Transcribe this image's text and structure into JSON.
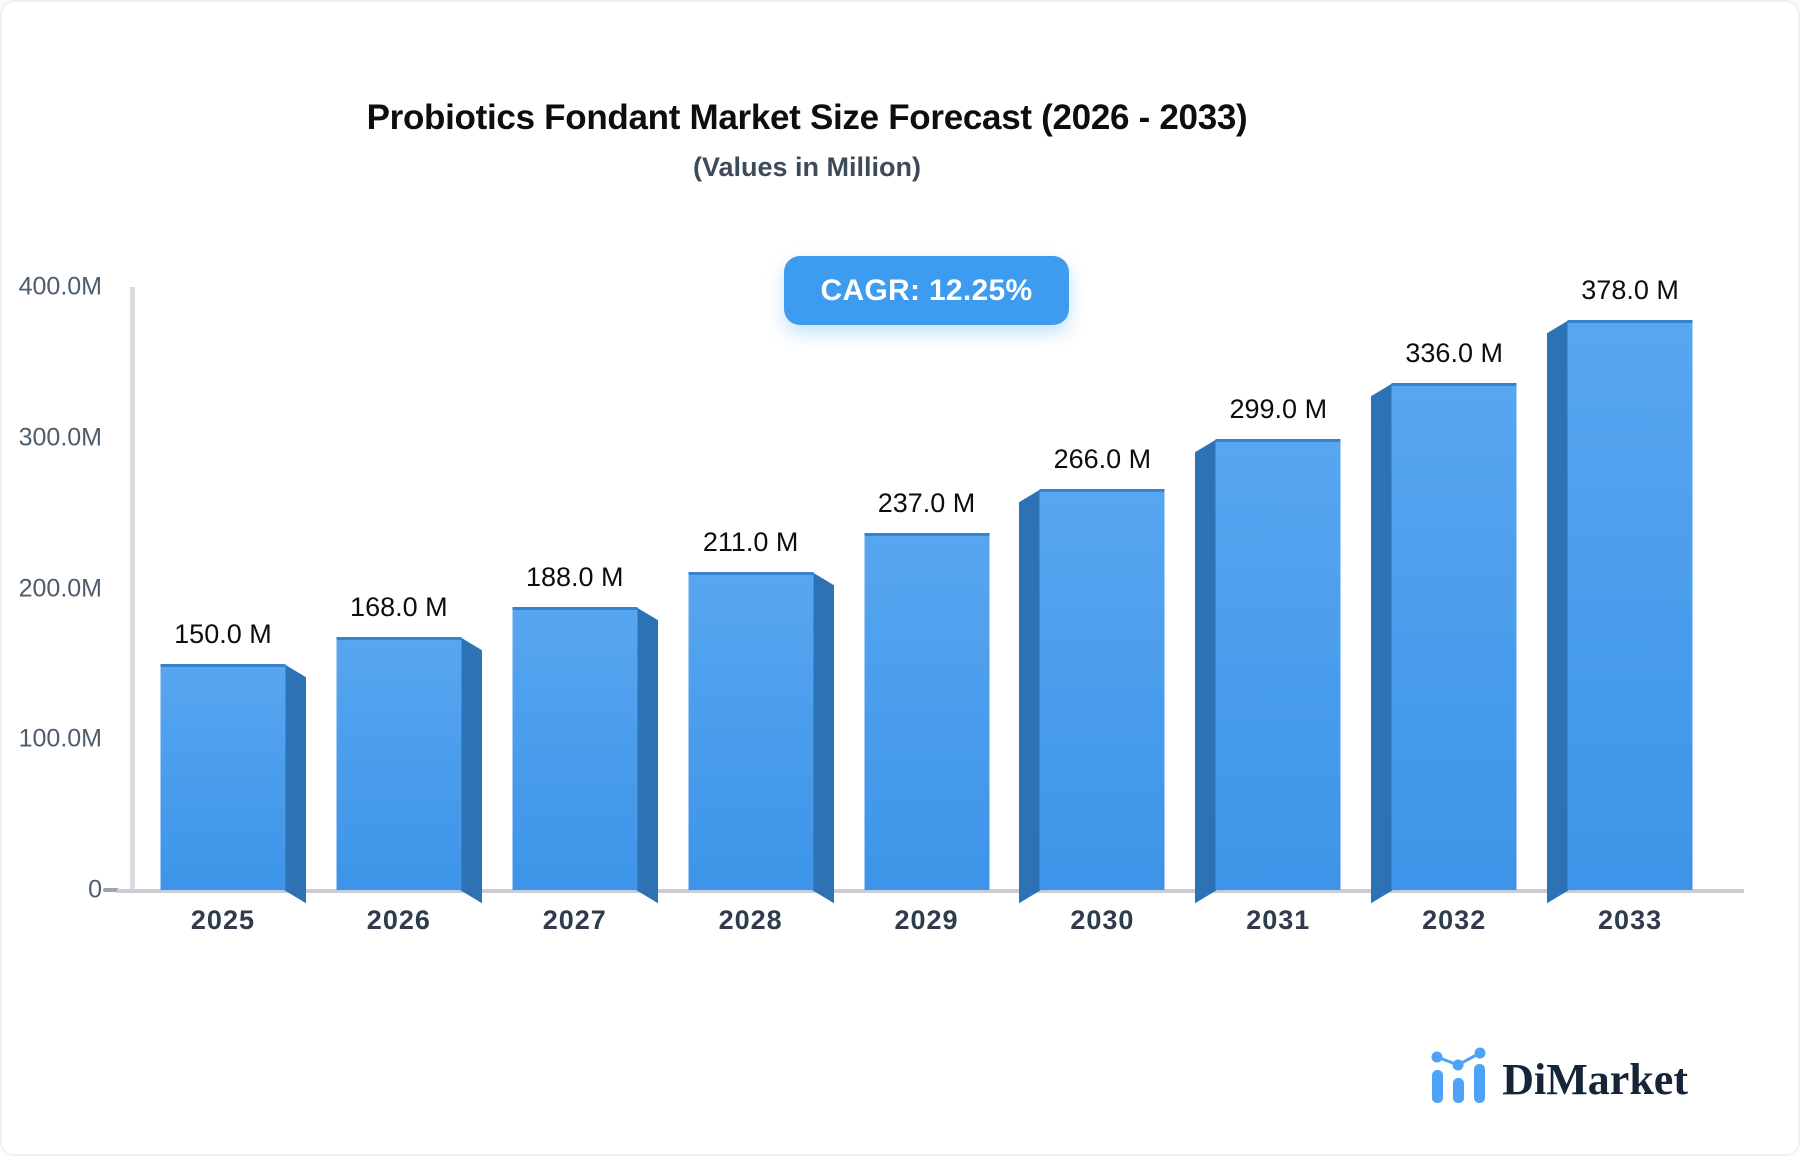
{
  "title": "Probiotics Fondant Market Size Forecast (2026 - 2033)",
  "subtitle": "(Values in Million)",
  "cagr_badge": "CAGR: 12.25%",
  "logo": {
    "brand": "DiMarket",
    "icon": "mini-bar-chart-with-dots"
  },
  "colors": {
    "badge_bg": "#3d9bf0",
    "badge_text": "#ffffff",
    "bar_face_top": "#57a6f0",
    "bar_face_bottom": "#3d94e8",
    "bar_top_edge": "#3a81cf",
    "bar_side": "#2d72b4",
    "baseline": "#c9cdd4",
    "axis_line": "#d8dbdf",
    "logo_blue": "#4da3f7",
    "logo_text": "#16243a"
  },
  "chart_data": {
    "type": "bar",
    "title": "Probiotics Fondant Market Size Forecast (2026 - 2033)",
    "subtitle": "(Values in Million)",
    "categories": [
      "2025",
      "2026",
      "2027",
      "2028",
      "2029",
      "2030",
      "2031",
      "2032",
      "2033"
    ],
    "values": [
      150,
      168,
      188,
      211,
      237,
      266,
      299,
      336,
      378
    ],
    "bar_labels": [
      "150.0 M",
      "168.0 M",
      "188.0 M",
      "211.0 M",
      "237.0 M",
      "266.0 M",
      "299.0 M",
      "336.0 M",
      "378.0 M"
    ],
    "ylim": [
      0,
      400
    ],
    "yticks": [
      {
        "value": 0,
        "label": "0"
      },
      {
        "value": 100,
        "label": "100.0M"
      },
      {
        "value": 200,
        "label": "200.0M"
      },
      {
        "value": 300,
        "label": "300.0M"
      },
      {
        "value": 400,
        "label": "400.0M"
      }
    ],
    "xlabel": "",
    "ylabel": "",
    "grid": false,
    "legend": "none",
    "style": "3d-effect-bars, side shading faces away from center"
  }
}
